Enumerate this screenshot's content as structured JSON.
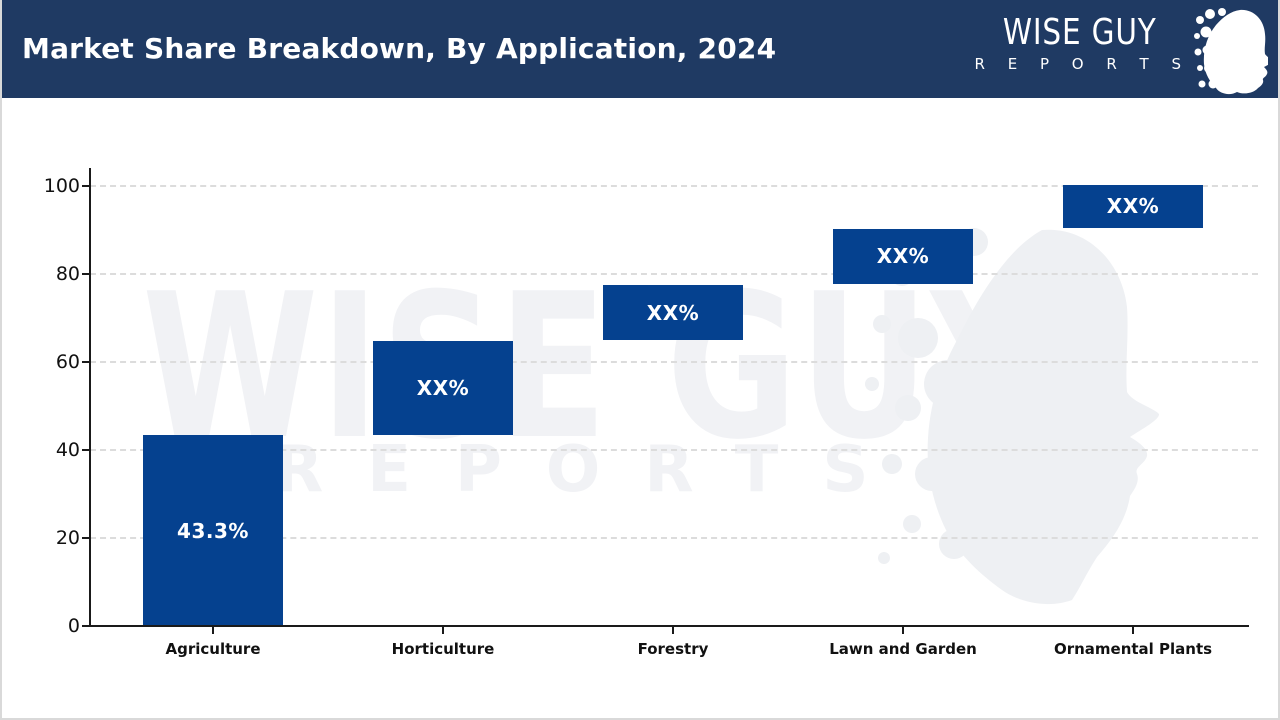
{
  "header": {
    "title": "Market Share Breakdown, By Application, 2024",
    "logo": {
      "line1": "WISE GUY",
      "line2": "R E P O R T S"
    }
  },
  "watermark": {
    "line1": "WISE GUY",
    "line2": "REPORTS"
  },
  "colors": {
    "header_bg": "#1f3a63",
    "bar": "#05418f",
    "bar_label": "#ffffff",
    "gridline": "#dcdcdc",
    "axis": "#1a1a1a",
    "watermark": "#f1f2f5"
  },
  "chart_data": {
    "type": "bar",
    "variant": "floating-waterfall",
    "title": "Market Share Breakdown, By Application, 2024",
    "categories": [
      "Agriculture",
      "Horticulture",
      "Forestry",
      "Lawn and Garden",
      "Ornamental Plants"
    ],
    "series": [
      {
        "name": "Market share (%)",
        "segments": [
          {
            "from": 0,
            "to": 43.3,
            "label": "43.3%"
          },
          {
            "from": 43.5,
            "to": 64.7,
            "label": "XX%"
          },
          {
            "from": 64.9,
            "to": 77.5,
            "label": "XX%"
          },
          {
            "from": 77.8,
            "to": 90.3,
            "label": "XX%"
          },
          {
            "from": 90.4,
            "to": 100.3,
            "label": "XX%"
          }
        ]
      }
    ],
    "xlabel": "",
    "ylabel": "",
    "ylim": [
      0,
      105
    ],
    "yticks": [
      0,
      20,
      40,
      60,
      80,
      100
    ],
    "grid": "horizontal-dashed",
    "legend": "none"
  }
}
